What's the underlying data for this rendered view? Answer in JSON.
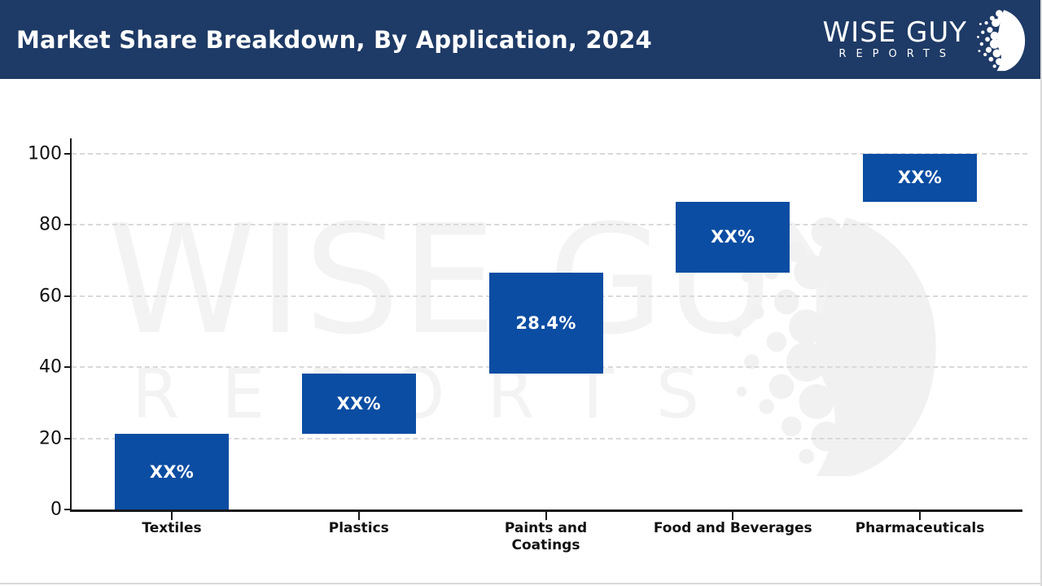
{
  "header": {
    "title": "Market Share Breakdown, By Application, 2024",
    "logo": {
      "name_line": "WISE GUY",
      "sub_line": "REPORTS"
    }
  },
  "watermark": {
    "name_line": "WISE GUY",
    "sub_line": "REPORTS"
  },
  "chart_data": {
    "type": "bar",
    "subtype": "waterfall",
    "title": "Market Share Breakdown, By Application, 2024",
    "categories": [
      "Textiles",
      "Plastics",
      "Paints and\nCoatings",
      "Food and Beverages",
      "Pharmaceuticals"
    ],
    "bars": [
      {
        "category": "Textiles",
        "start": 0,
        "end": 21.2,
        "height": 21.2,
        "label": "XX%"
      },
      {
        "category": "Plastics",
        "start": 21.2,
        "end": 38.2,
        "height": 17.0,
        "label": "XX%"
      },
      {
        "category": "Paints and Coatings",
        "start": 38.2,
        "end": 66.6,
        "height": 28.4,
        "label": "28.4%"
      },
      {
        "category": "Food and Beverages",
        "start": 66.6,
        "end": 86.5,
        "height": 19.9,
        "label": "XX%"
      },
      {
        "category": "Pharmaceuticals",
        "start": 86.5,
        "end": 100,
        "height": 13.5,
        "label": "XX%"
      }
    ],
    "ylim": [
      0,
      100
    ],
    "yticks": [
      0,
      20,
      40,
      60,
      80,
      100
    ],
    "grid": "horizontal-dashed",
    "legend": "none",
    "xlabel": "",
    "ylabel": ""
  },
  "colors": {
    "header_bg": "#1e3a66",
    "bar": "#0b4da2",
    "bar_label": "#ffffff",
    "grid": "#d9d9d9",
    "axis": "#1a1a1a",
    "text": "#111111",
    "watermark": "#f2f2f2"
  }
}
